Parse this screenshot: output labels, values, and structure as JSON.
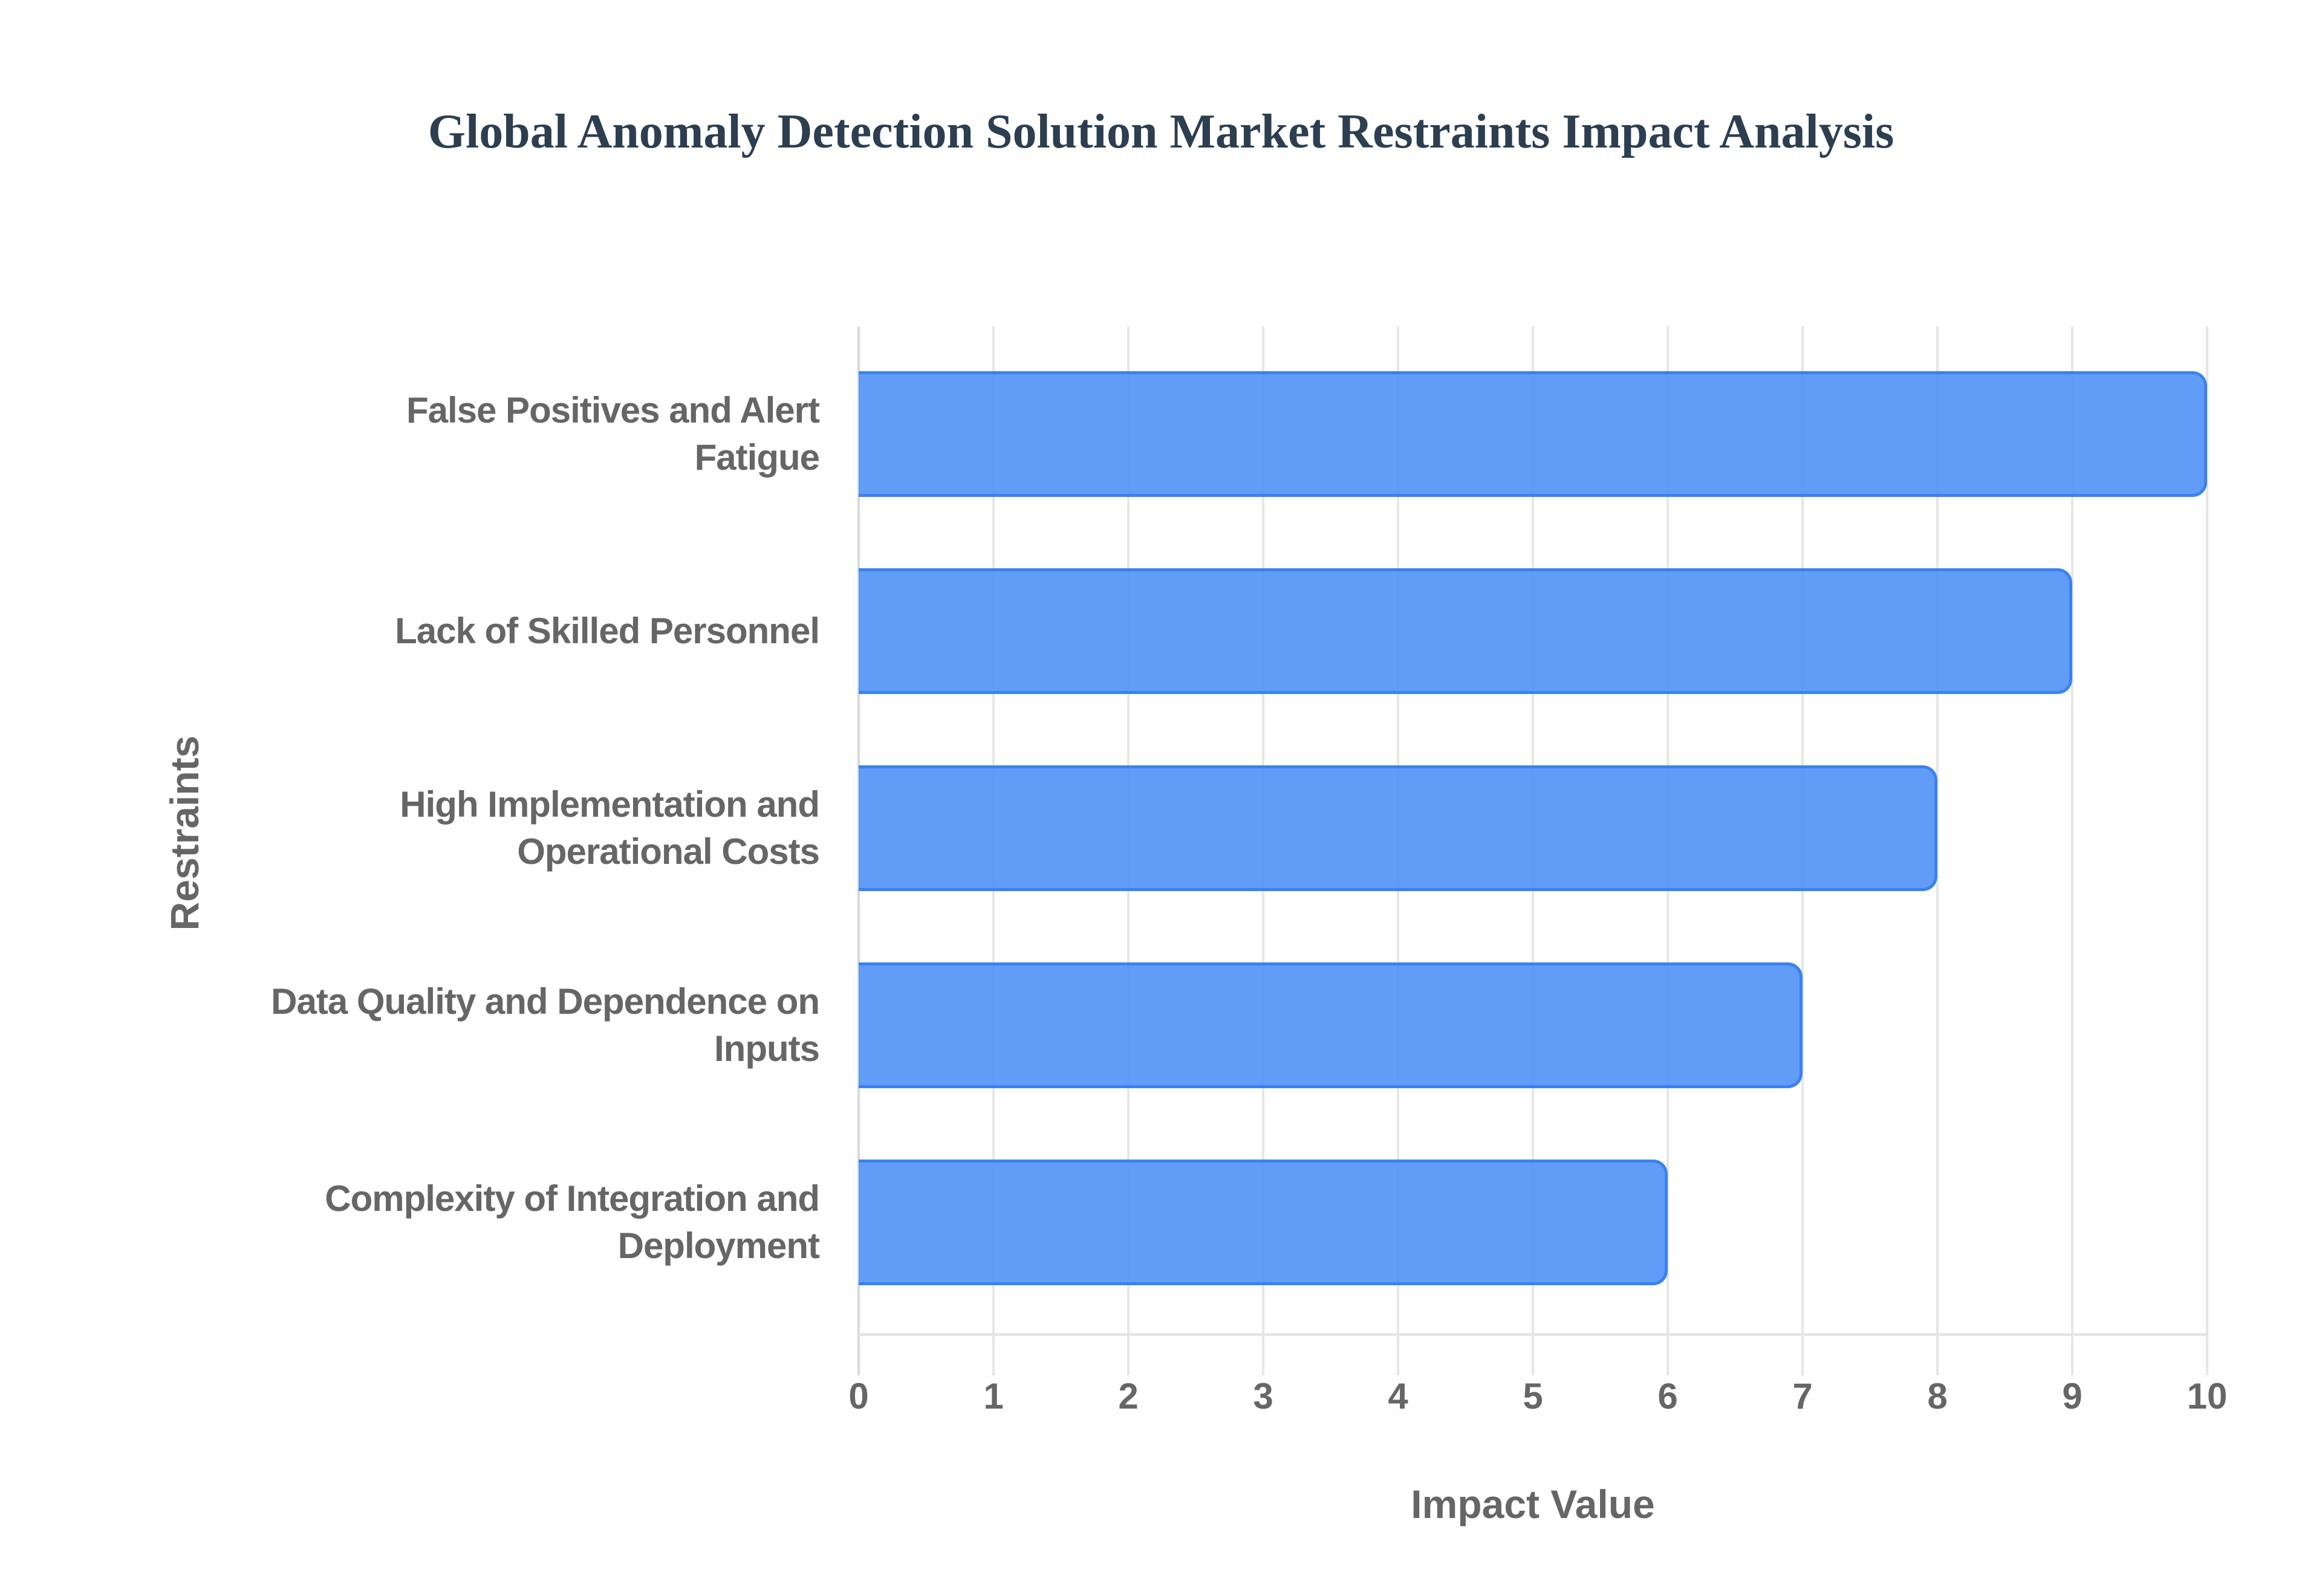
{
  "chart_data": {
    "type": "bar",
    "orientation": "horizontal",
    "title": "Global Anomaly Detection Solution Market Restraints Impact Analysis",
    "xlabel": "Impact Value",
    "ylabel": "Restraints",
    "xlim": [
      0,
      10
    ],
    "x_ticks": [
      "0",
      "1",
      "2",
      "3",
      "4",
      "5",
      "6",
      "7",
      "8",
      "9",
      "10"
    ],
    "grid": true,
    "legend": null,
    "categories": [
      "False Positives and Alert Fatigue",
      "Lack of Skilled Personnel",
      "High Implementation and Operational Costs",
      "Data Quality and Dependence on Inputs",
      "Complexity of Integration and Deployment"
    ],
    "category_lines": [
      [
        "False Positives and Alert",
        "Fatigue"
      ],
      [
        "Lack of Skilled Personnel"
      ],
      [
        "High Implementation and",
        "Operational Costs"
      ],
      [
        "Data Quality and Dependence on",
        "Inputs"
      ],
      [
        "Complexity of Integration and",
        "Deployment"
      ]
    ],
    "values": [
      10,
      9,
      8,
      7,
      6
    ],
    "colors": {
      "bar_fill": "#6199F5",
      "bar_border": "#3B82F0",
      "title": "#2C3E50",
      "axis_text": "#666666",
      "grid": "#E6E6E6"
    }
  }
}
